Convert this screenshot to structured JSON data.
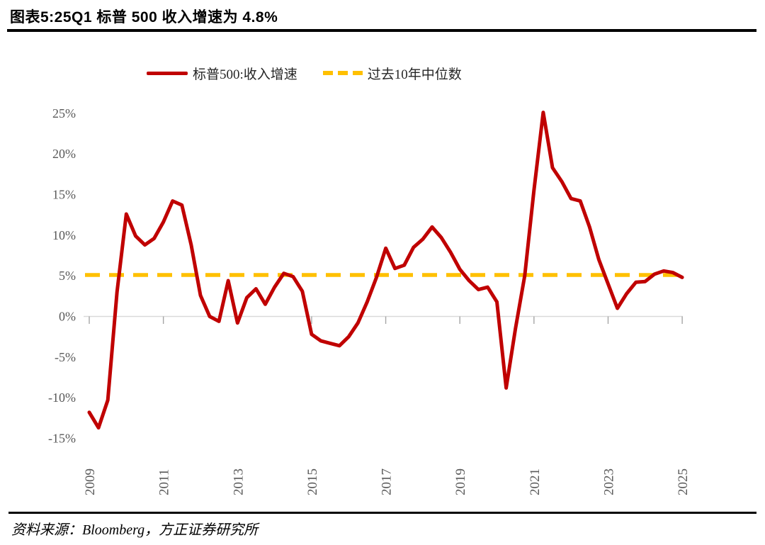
{
  "header": {
    "title": "图表5:25Q1 标普 500 收入增速为 4.8%"
  },
  "legend": {
    "items": [
      {
        "label": "标普500:收入增速",
        "color": "#C00000",
        "style": "solid"
      },
      {
        "label": "过去10年中位数",
        "color": "#FFC000",
        "style": "dashed"
      }
    ]
  },
  "footer": {
    "source": "资料来源：Bloomberg，方正证券研究所"
  },
  "colors": {
    "series_red": "#C00000",
    "median_yellow": "#FFC000",
    "zero_axis": "#D9D9D9",
    "tick": "#A6A6A6",
    "axis_label": "#595959"
  },
  "chart_data": {
    "type": "line",
    "title": "25Q1 标普 500 收入增速为 4.8%",
    "x_unit": "quarter",
    "x_start": "2009Q1",
    "x_end": "2025Q1",
    "ylim": [
      -15,
      25
    ],
    "y_tick_step": 5,
    "grid": "zero-axis-only",
    "legend_position": "top",
    "x_tick_labels": [
      "2009",
      "2011",
      "2013",
      "2015",
      "2017",
      "2019",
      "2021",
      "2023",
      "2025"
    ],
    "y_ticks": [
      {
        "label": "25%",
        "value": 25
      },
      {
        "label": "20%",
        "value": 20
      },
      {
        "label": "15%",
        "value": 15
      },
      {
        "label": "10%",
        "value": 10
      },
      {
        "label": "5%",
        "value": 5
      },
      {
        "label": "0%",
        "value": 0
      },
      {
        "label": "-5%",
        "value": -5
      },
      {
        "label": "-10%",
        "value": -10
      },
      {
        "label": "-15%",
        "value": -15
      }
    ],
    "quarters": [
      "2009Q1",
      "2009Q2",
      "2009Q3",
      "2009Q4",
      "2010Q1",
      "2010Q2",
      "2010Q3",
      "2010Q4",
      "2011Q1",
      "2011Q2",
      "2011Q3",
      "2011Q4",
      "2012Q1",
      "2012Q2",
      "2012Q3",
      "2012Q4",
      "2013Q1",
      "2013Q2",
      "2013Q3",
      "2013Q4",
      "2014Q1",
      "2014Q2",
      "2014Q3",
      "2014Q4",
      "2015Q1",
      "2015Q2",
      "2015Q3",
      "2015Q4",
      "2016Q1",
      "2016Q2",
      "2016Q3",
      "2016Q4",
      "2017Q1",
      "2017Q2",
      "2017Q3",
      "2017Q4",
      "2018Q1",
      "2018Q2",
      "2018Q3",
      "2018Q4",
      "2019Q1",
      "2019Q2",
      "2019Q3",
      "2019Q4",
      "2020Q1",
      "2020Q2",
      "2020Q3",
      "2020Q4",
      "2021Q1",
      "2021Q2",
      "2021Q3",
      "2021Q4",
      "2022Q1",
      "2022Q2",
      "2022Q3",
      "2022Q4",
      "2023Q1",
      "2023Q2",
      "2023Q3",
      "2023Q4",
      "2024Q1",
      "2024Q2",
      "2024Q3",
      "2024Q4",
      "2025Q1"
    ],
    "series": [
      {
        "name": "标普500:收入增速",
        "color": "#C00000",
        "style": "solid",
        "values": [
          -11.8,
          -13.7,
          -10.3,
          3.0,
          12.6,
          9.9,
          8.8,
          9.6,
          11.6,
          14.2,
          13.7,
          8.8,
          2.6,
          0.0,
          -0.6,
          4.4,
          -0.8,
          2.3,
          3.4,
          1.5,
          3.6,
          5.3,
          4.9,
          3.1,
          -2.2,
          -3.0,
          -3.3,
          -3.6,
          -2.5,
          -0.8,
          1.8,
          4.8,
          8.4,
          5.9,
          6.3,
          8.5,
          9.5,
          11.0,
          9.7,
          7.9,
          5.8,
          4.4,
          3.3,
          3.6,
          1.8,
          -8.8,
          -1.5,
          5.0,
          15.5,
          25.1,
          18.3,
          16.6,
          14.5,
          14.2,
          11.0,
          7.0,
          4.0,
          1.0,
          2.8,
          4.2,
          4.3,
          5.2,
          5.6,
          5.4,
          4.8
        ]
      },
      {
        "name": "过去10年中位数",
        "color": "#FFC000",
        "style": "dashed",
        "value": 5.1
      }
    ]
  }
}
